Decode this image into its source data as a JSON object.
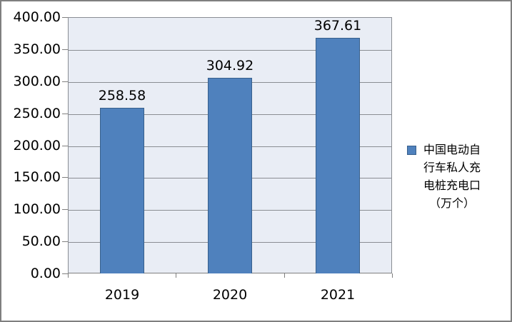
{
  "chart_data": {
    "type": "bar",
    "title": "",
    "categories": [
      "2019",
      "2020",
      "2021"
    ],
    "series": [
      {
        "name": "中国电动自行车私人充电桩充电口（万个）",
        "values": [
          258.58,
          304.92,
          367.61
        ]
      }
    ],
    "data_labels": [
      "258.58",
      "304.92",
      "367.61"
    ],
    "xlabel": "",
    "ylabel": "",
    "ylim": [
      0,
      400
    ],
    "ytick_step": 50,
    "ytick_labels": [
      "0.00",
      "50.00",
      "100.00",
      "150.00",
      "200.00",
      "250.00",
      "300.00",
      "350.00",
      "400.00"
    ],
    "grid": true,
    "legend_position": "right",
    "legend_lines": [
      "中国电动自",
      "行车私人充",
      "电桩充电口",
      "（万个）"
    ],
    "colors": {
      "bar_fill": "#4F81BD",
      "bar_border": "#38608C",
      "plot_bg": "#E9EDF5",
      "gridline": "#8A8D93",
      "axis": "#7F7F7F",
      "chart_border": "#7F7F7F",
      "text": "#000000"
    }
  }
}
